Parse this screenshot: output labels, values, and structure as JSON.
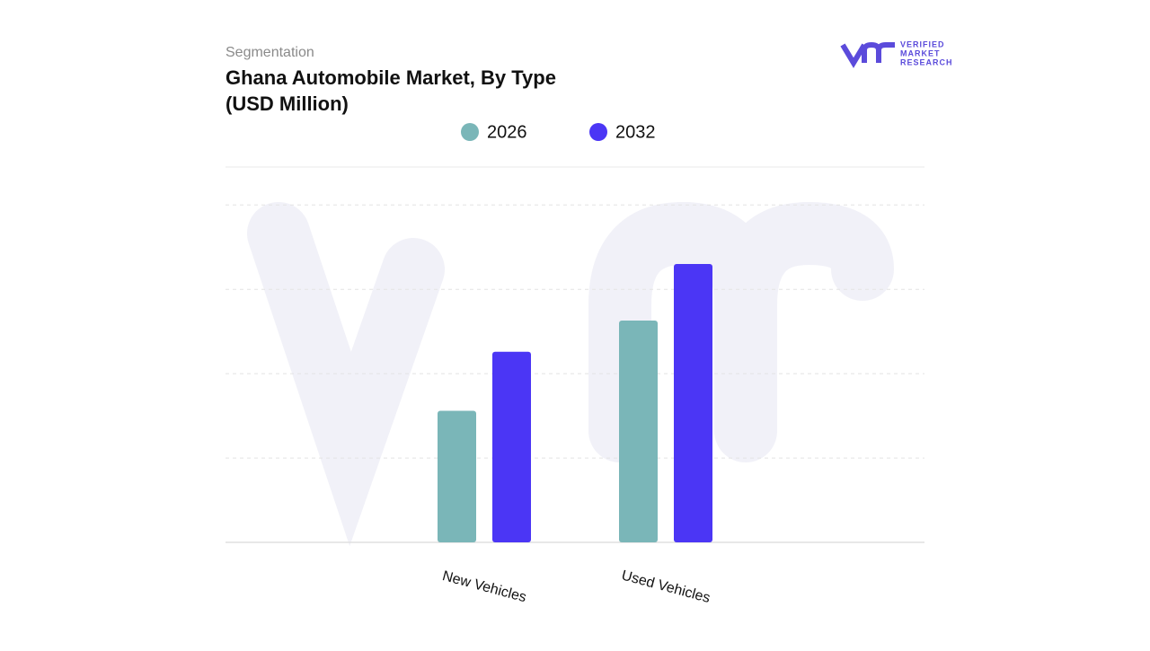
{
  "header": {
    "subtitle": "Segmentation",
    "logo_lines": [
      "VERIFIED",
      "MARKET",
      "RESEARCH"
    ]
  },
  "chart_data": {
    "type": "bar",
    "title_lines": [
      "Ghana Automobile Market, By Type",
      "(USD Million)"
    ],
    "categories": [
      "New Vehicles",
      "Used Vehicles"
    ],
    "series": [
      {
        "name": "2026",
        "color": "#7ab6b8",
        "values": [
          1.56,
          2.63
        ]
      },
      {
        "name": "2032",
        "color": "#4b36f5",
        "values": [
          2.26,
          3.3
        ]
      }
    ],
    "ylim": [
      0,
      4.45
    ],
    "gridlines": [
      1,
      2,
      3,
      4
    ],
    "grid": true
  }
}
